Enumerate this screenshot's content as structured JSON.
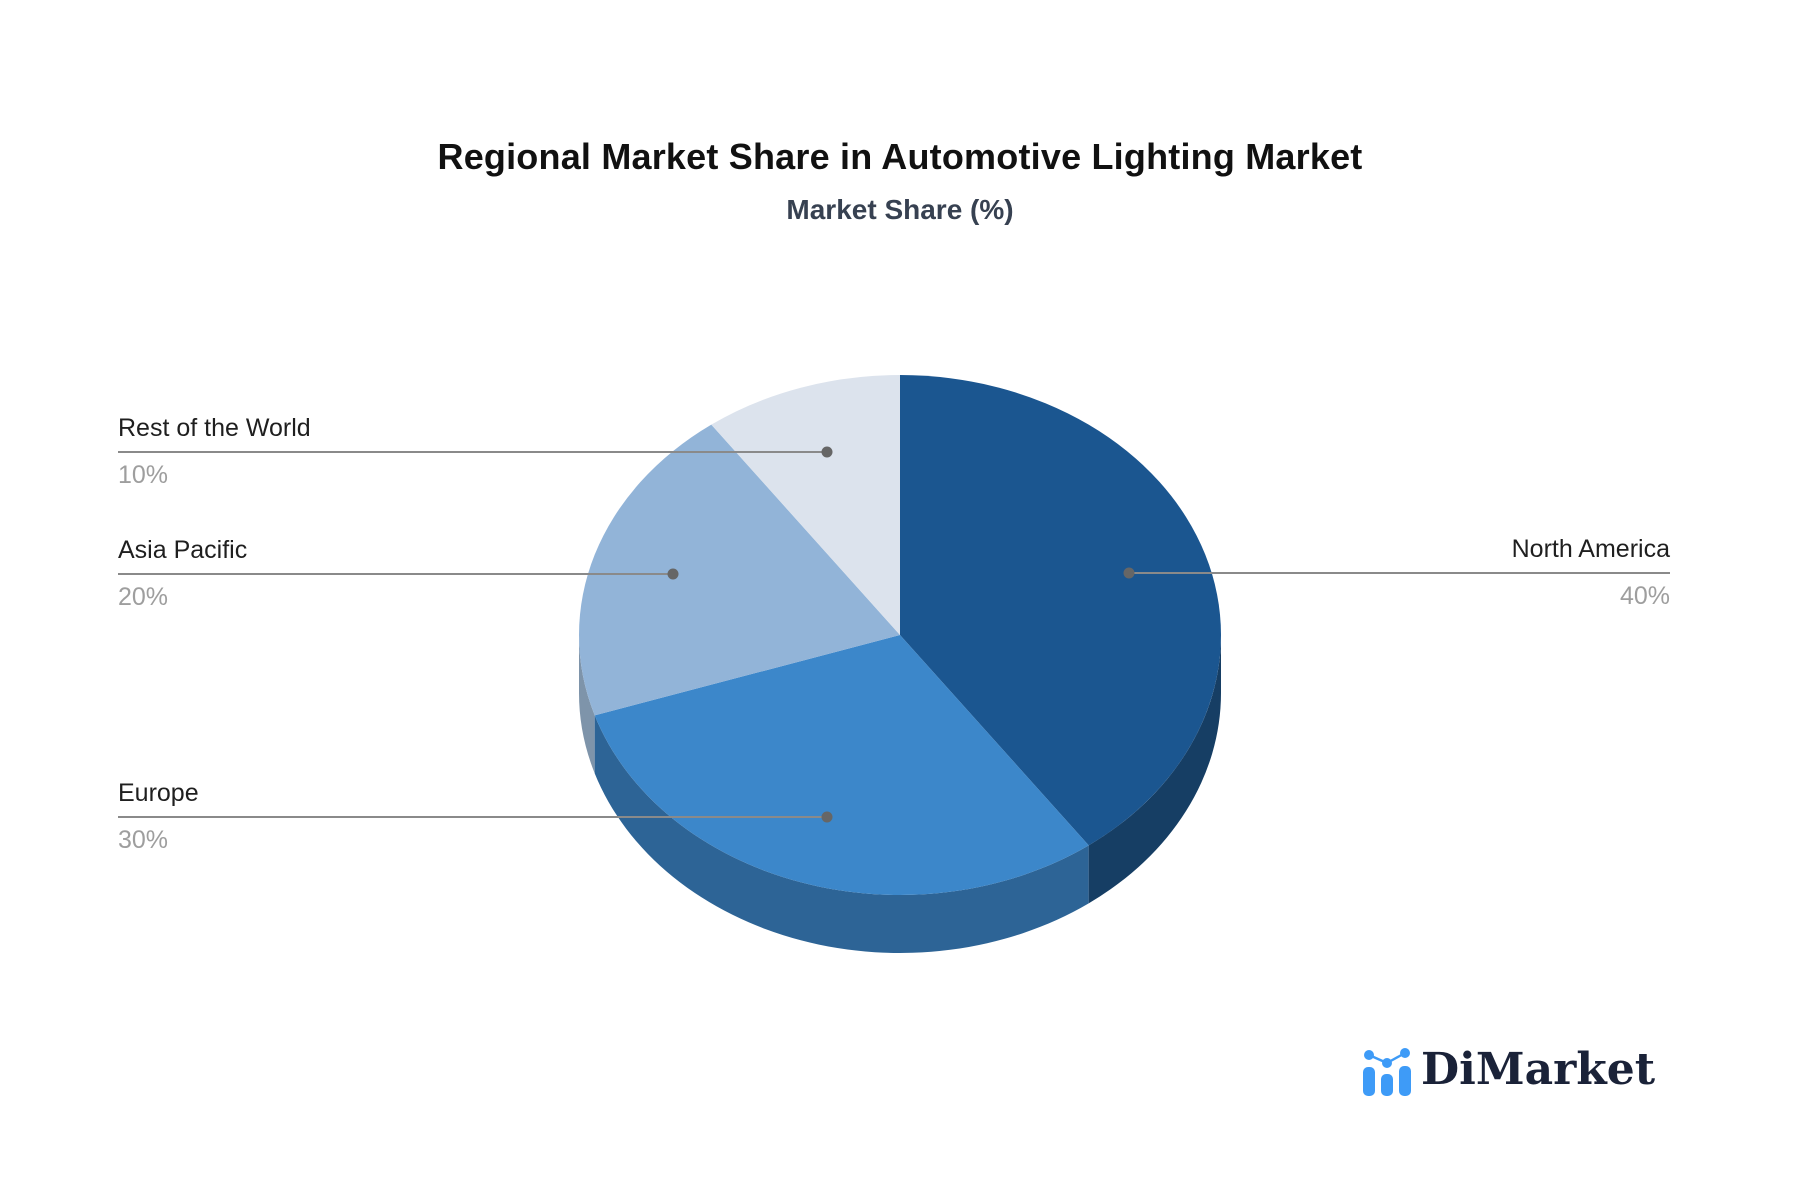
{
  "header": {
    "title": "Regional Market Share in Automotive Lighting Market",
    "subtitle": "Market Share (%)"
  },
  "chart_data": {
    "type": "pie",
    "title": "Regional Market Share in Automotive Lighting Market",
    "subtitle": "Market Share (%)",
    "unit": "%",
    "effect": "3d",
    "legend_position": "callout-labels",
    "grid": false,
    "categories": [
      "North America",
      "Europe",
      "Asia Pacific",
      "Rest of the World"
    ],
    "values": [
      40,
      30,
      20,
      10
    ],
    "slices": [
      {
        "label": "North America",
        "pct": "40%",
        "value": 40,
        "color": "#1B5690",
        "side_color": "#163E64"
      },
      {
        "label": "Europe",
        "pct": "30%",
        "value": 30,
        "color": "#3C87CA",
        "side_color": "#2D6496"
      },
      {
        "label": "Asia Pacific",
        "pct": "20%",
        "value": 20,
        "color": "#92B4D8",
        "side_color": "#7E94AA"
      },
      {
        "label": "Rest of the World",
        "pct": "10%",
        "value": 10,
        "color": "#DCE3ED",
        "side_color": "#B9C4D4"
      }
    ]
  },
  "style": {
    "title_color": "#111111",
    "subtitle_color": "#374151",
    "label_color": "#1f1f1f",
    "pct_color": "#9e9e9e",
    "leader_line_color": "#8a8a8a",
    "leader_dot_color": "#666666",
    "background": "#ffffff"
  },
  "logo": {
    "text": "DiMarket",
    "icon": "bar-chart-logo-icon",
    "icon_color": "#3E9BF7",
    "text_color": "#1A2238"
  }
}
